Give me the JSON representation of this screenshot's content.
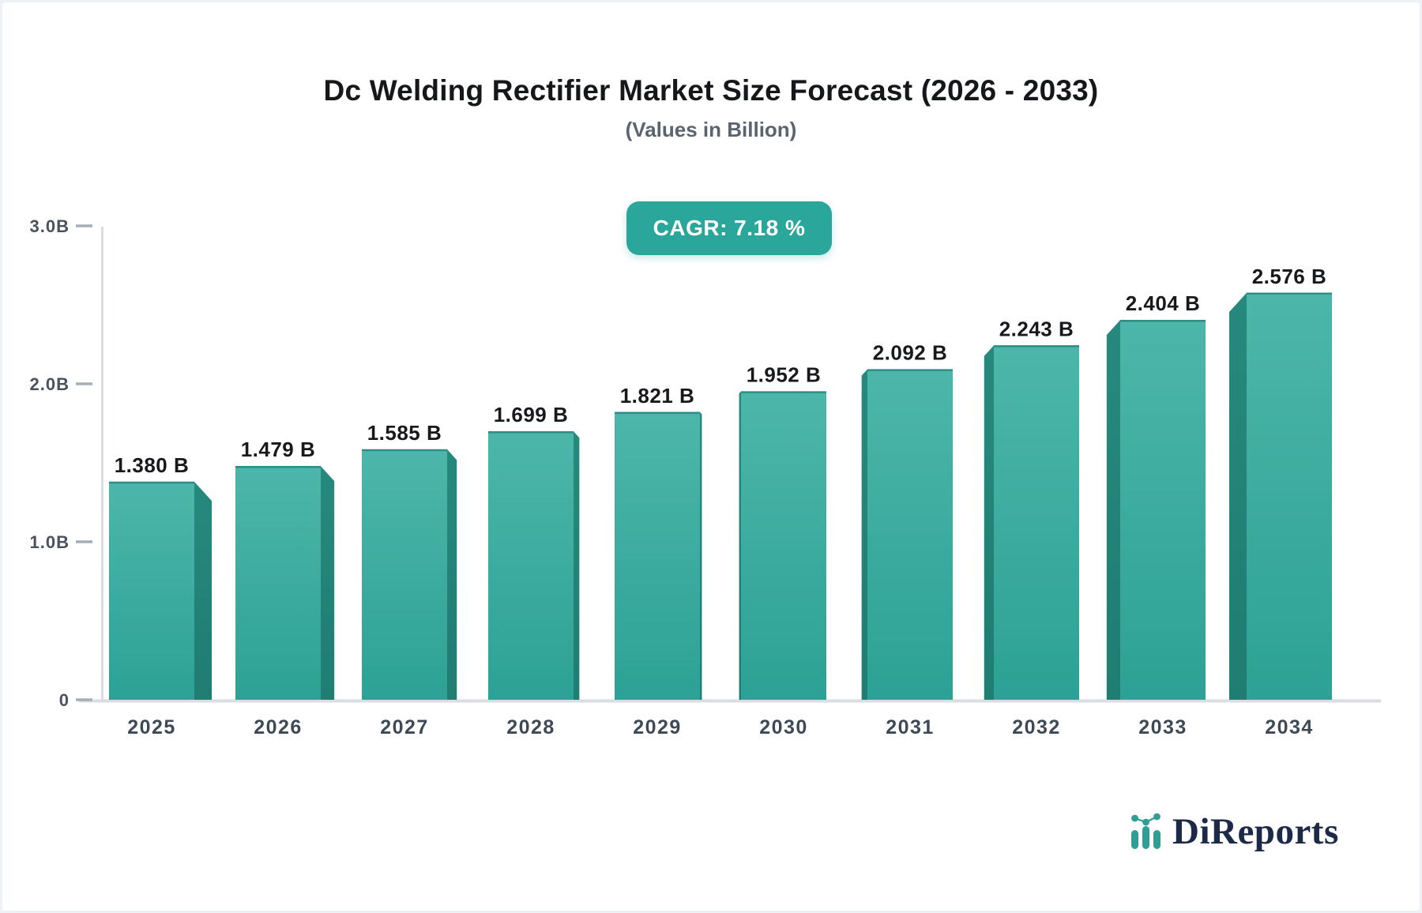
{
  "page": {
    "background": "#eef1f5",
    "card_background": "#ffffff"
  },
  "chart": {
    "title": "Dc Welding Rectifier Market Size Forecast (2026 - 2033)",
    "subtitle": "(Values in Billion)",
    "cagr_label": "CAGR: 7.18 %"
  },
  "chart_data": {
    "type": "bar",
    "title": "Dc Welding Rectifier Market Size Forecast (2026 - 2033)",
    "subtitle": "(Values in Billion)",
    "cagr": "7.18 %",
    "unit": "Billion",
    "categories": [
      "2025",
      "2026",
      "2027",
      "2028",
      "2029",
      "2030",
      "2031",
      "2032",
      "2033",
      "2034"
    ],
    "values": [
      1.38,
      1.479,
      1.585,
      1.699,
      1.821,
      1.952,
      2.092,
      2.243,
      2.404,
      2.576
    ],
    "value_labels": [
      "1.380 B",
      "1.479 B",
      "1.585 B",
      "1.699 B",
      "1.821 B",
      "1.952 B",
      "2.092 B",
      "2.243 B",
      "2.404 B",
      "2.576 B"
    ],
    "ylim": [
      0,
      3
    ],
    "yticks": [
      {
        "label": "0",
        "value": 0
      },
      {
        "label": "1.0B",
        "value": 1
      },
      {
        "label": "2.0B",
        "value": 2
      },
      {
        "label": "3.0B",
        "value": 3
      }
    ],
    "grid": false,
    "legend": "none",
    "style_3d": "perspective toward chart center",
    "colors": {
      "bar_front_top": "#4db6aa",
      "bar_front_bottom": "#2da195",
      "bar_side_top": "#27897d",
      "bar_side_bottom": "#1f7d72",
      "bar_top_edge": "#2e8e84",
      "axis_line": "#d9dce0",
      "tick_dash": "#a7adb4",
      "tick_text": "#49525e",
      "year_text": "#3d4957",
      "value_text": "#17191d",
      "badge_bg": "#2aa79a"
    }
  },
  "logo": {
    "text": "DiReports",
    "teal": "#2f9e94",
    "navy": "#1c2a47"
  }
}
